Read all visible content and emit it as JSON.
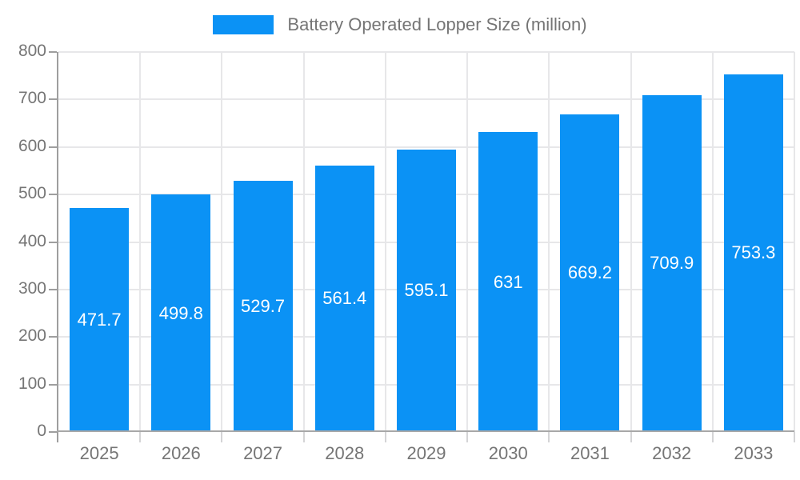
{
  "legend": {
    "label": "Battery Operated Lopper Size (million)",
    "swatch_color": "#0b92f5"
  },
  "chart_data": {
    "type": "bar",
    "title": "Battery Operated Lopper Size (million)",
    "categories": [
      "2025",
      "2026",
      "2027",
      "2028",
      "2029",
      "2030",
      "2031",
      "2032",
      "2033"
    ],
    "values": [
      471.7,
      499.8,
      529.7,
      561.4,
      595.1,
      631,
      669.2,
      709.9,
      753.3
    ],
    "value_labels": [
      "471.7",
      "499.8",
      "529.7",
      "561.4",
      "595.1",
      "631",
      "669.2",
      "709.9",
      "753.3"
    ],
    "xlabel": "",
    "ylabel": "",
    "ylim": [
      0,
      800
    ],
    "y_ticks": [
      0,
      100,
      200,
      300,
      400,
      500,
      600,
      700,
      800
    ],
    "grid": true,
    "legend_position": "top",
    "colors": {
      "bar": "#0b92f5",
      "grid": "#e7e7e9",
      "axis": "#9e9e9e",
      "tick_label": "#757575",
      "value_label": "#ffffff"
    }
  }
}
